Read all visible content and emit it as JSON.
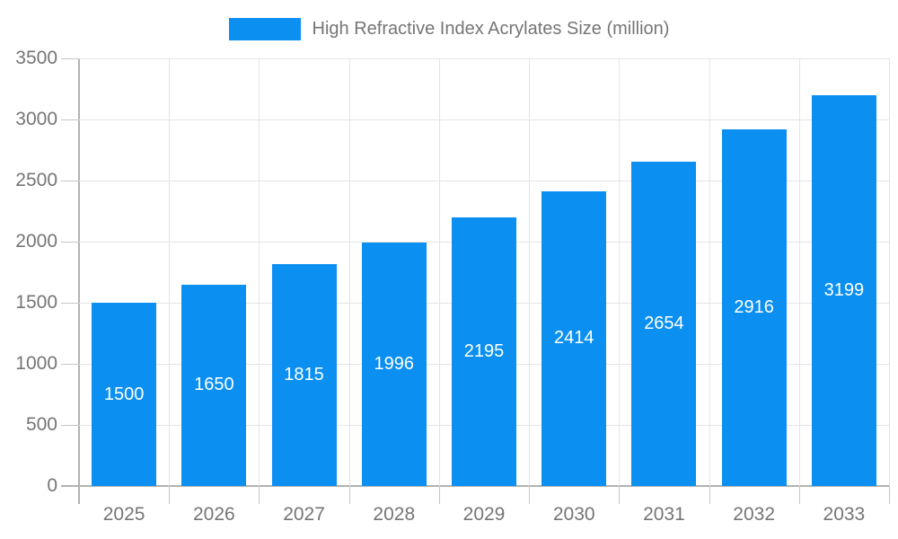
{
  "legend": {
    "label": "High Refractive Index Acrylates Size (million)"
  },
  "chart_data": {
    "type": "bar",
    "title": "High Refractive Index Acrylates Size (million)",
    "categories": [
      "2025",
      "2026",
      "2027",
      "2028",
      "2029",
      "2030",
      "2031",
      "2032",
      "2033"
    ],
    "series": [
      {
        "name": "High Refractive Index Acrylates Size (million)",
        "values": [
          1500,
          1650,
          1815,
          1996,
          2195,
          2414,
          2654,
          2916,
          3199
        ]
      }
    ],
    "xlabel": "",
    "ylabel": "",
    "ylim": [
      0,
      3500
    ],
    "y_ticks": [
      0,
      500,
      1000,
      1500,
      2000,
      2500,
      3000,
      3500
    ],
    "grid": true,
    "legend_position": "top",
    "value_labels": "inside-center"
  },
  "colors": {
    "bar": "#0b90f2",
    "axis": "#b3b3b3",
    "gridline": "#e4e4e4",
    "tick": "#c6c6c6",
    "axis_text": "#757575",
    "value_label_text": "#ffffff",
    "background": "#ffffff"
  }
}
